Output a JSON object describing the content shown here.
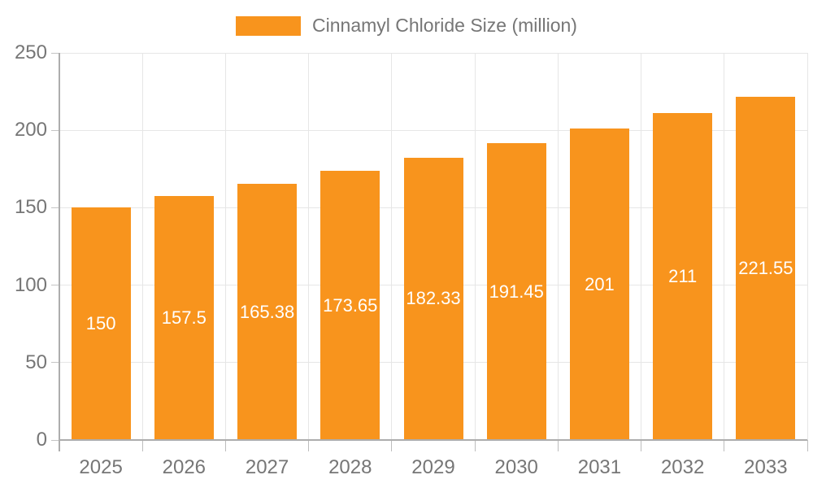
{
  "legend": {
    "label": "Cinnamyl Chloride Size (million)",
    "position": "top"
  },
  "colors": {
    "bar": "#f8941d",
    "axis": "#adadad",
    "grid": "#e6e6e6",
    "tick": "#c4c4c4",
    "text": "#767676",
    "bar_label": "#ffffff",
    "background": "#ffffff"
  },
  "chart_data": {
    "type": "bar",
    "title": "",
    "xlabel": "",
    "ylabel": "",
    "categories": [
      "2025",
      "2026",
      "2027",
      "2028",
      "2029",
      "2030",
      "2031",
      "2032",
      "2033"
    ],
    "series": [
      {
        "name": "Cinnamyl Chloride Size (million)",
        "values": [
          150,
          157.5,
          165.38,
          173.65,
          182.33,
          191.45,
          201,
          211,
          221.55
        ],
        "labels": [
          "150",
          "157.5",
          "165.38",
          "173.65",
          "182.33",
          "191.45",
          "201",
          "211",
          "221.55"
        ]
      }
    ],
    "ylim": [
      0,
      250
    ],
    "yticks": [
      0,
      50,
      100,
      150,
      200,
      250
    ],
    "grid": true,
    "bar_labels_inside": true,
    "legend_position": "top-center"
  }
}
